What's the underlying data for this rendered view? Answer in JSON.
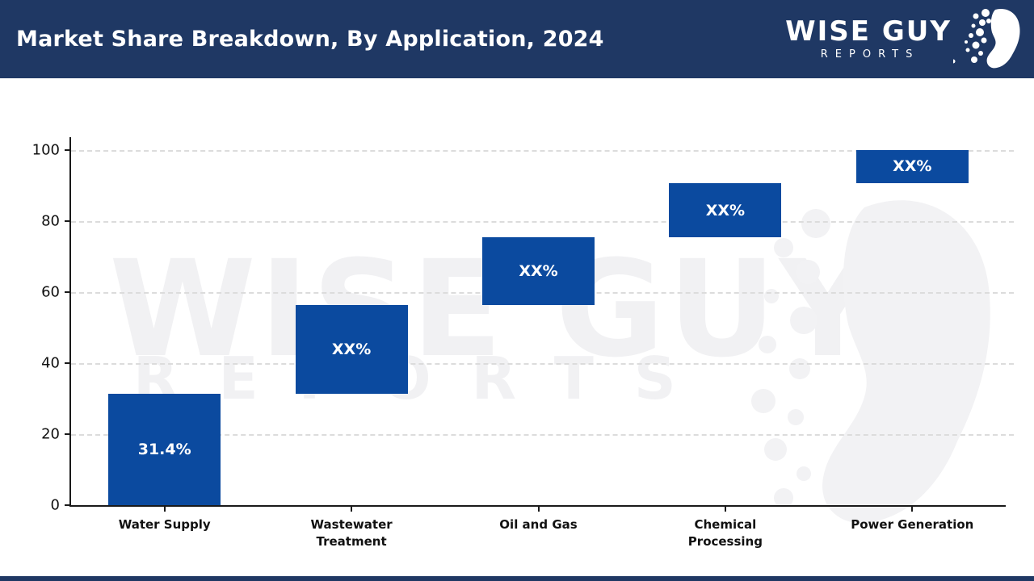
{
  "header": {
    "title": "Market Share Breakdown, By Application, 2024",
    "logo": {
      "line1": "WISE GUY",
      "line2": "REPORTS"
    },
    "background_color": "#1f3864"
  },
  "watermark": {
    "line1": "WISE GUY",
    "line2": "REPORTS"
  },
  "chart_data": {
    "type": "bar",
    "subtype": "waterfall-floating-bars",
    "title": "Market Share Breakdown, By Application, 2024",
    "xlabel": "",
    "ylabel": "",
    "ylim": [
      0,
      100
    ],
    "yticks": [
      0,
      20,
      40,
      60,
      80,
      100
    ],
    "grid": "dashed-horizontal",
    "legend": "none",
    "bar_color": "#0b4a9f",
    "bar_label_color": "#ffffff",
    "categories": [
      "Water Supply",
      "Wastewater Treatment",
      "Oil and Gas",
      "Chemical Processing",
      "Power Generation"
    ],
    "category_lines": [
      [
        "Water Supply"
      ],
      [
        "Wastewater",
        "Treatment"
      ],
      [
        "Oil and Gas"
      ],
      [
        "Chemical",
        "Processing"
      ],
      [
        "Power Generation"
      ]
    ],
    "segments": [
      {
        "category": "Water Supply",
        "start": 0,
        "end": 31.4,
        "label": "31.4%"
      },
      {
        "category": "Wastewater Treatment",
        "start": 31.4,
        "end": 56.4,
        "label": "XX%"
      },
      {
        "category": "Oil and Gas",
        "start": 56.4,
        "end": 75.4,
        "label": "XX%"
      },
      {
        "category": "Chemical Processing",
        "start": 75.4,
        "end": 90.7,
        "label": "XX%"
      },
      {
        "category": "Power Generation",
        "start": 90.7,
        "end": 100,
        "label": "XX%"
      }
    ]
  },
  "footer": {
    "background_color": "#1f3864"
  }
}
